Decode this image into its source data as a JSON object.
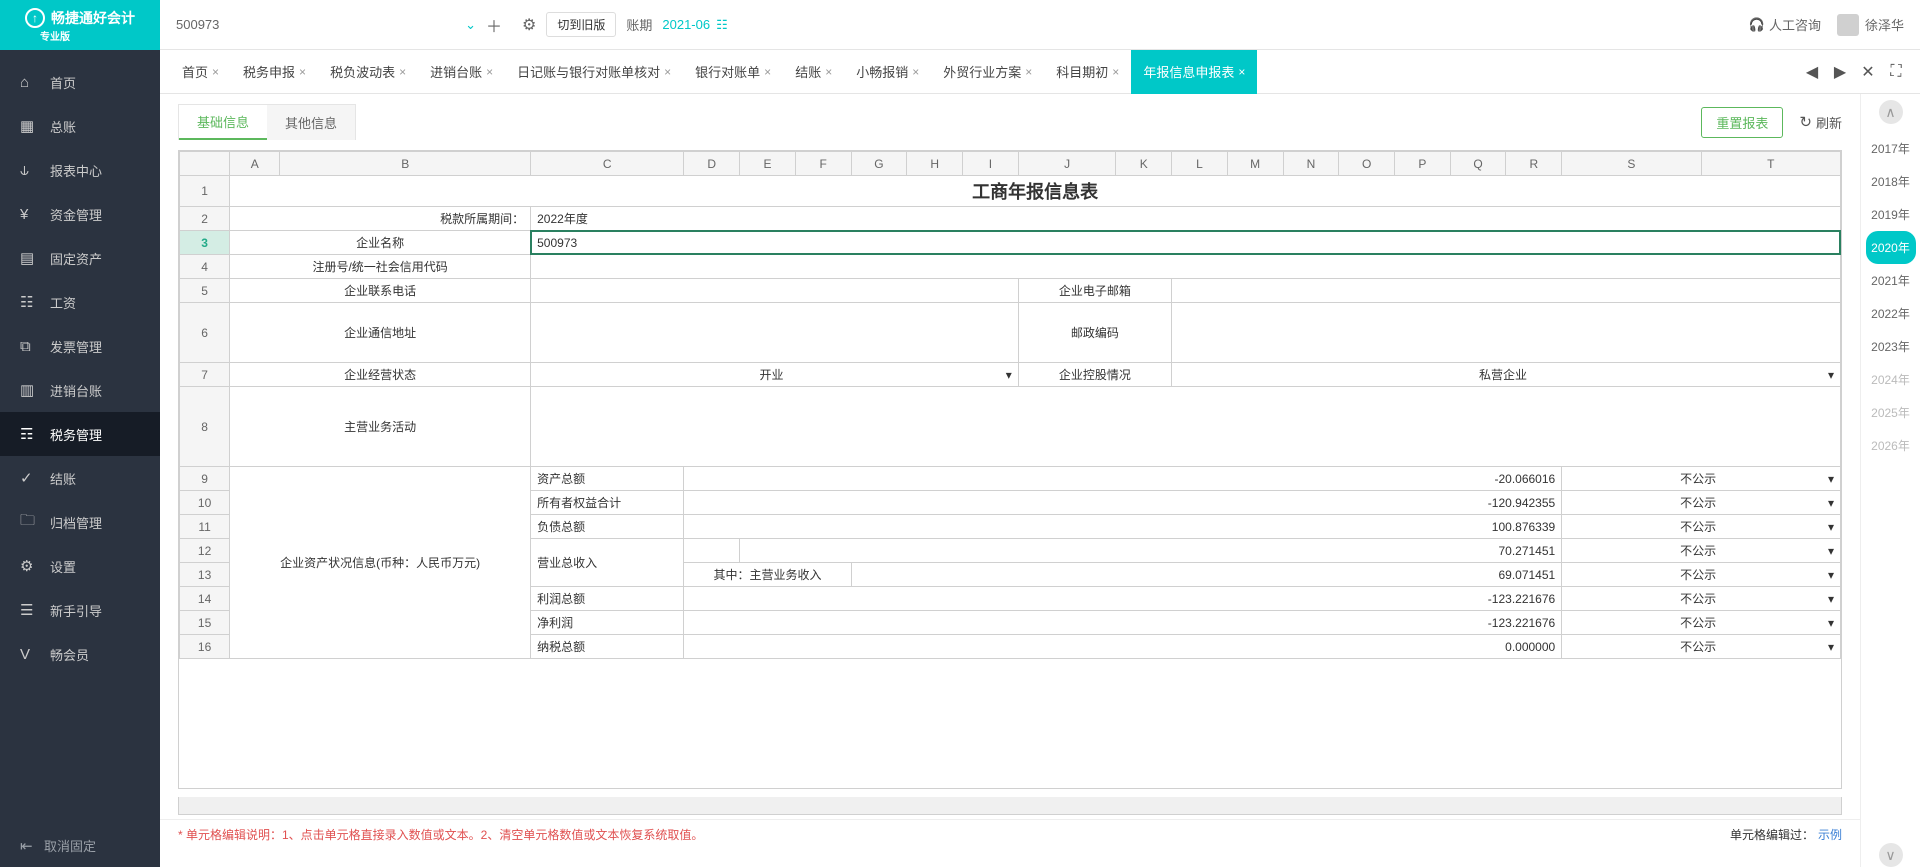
{
  "brand": {
    "name": "畅捷通好会计",
    "edition": "专业版"
  },
  "topbar": {
    "company_code": "500973",
    "switch_old_label": "切到旧版",
    "period_label": "账期",
    "period_value": "2021-06",
    "support_label": "人工咨询",
    "user_name": "徐泽华"
  },
  "nav": {
    "items": [
      {
        "icon": "⌂",
        "label": "首页",
        "name": "home"
      },
      {
        "icon": "▦",
        "label": "总账",
        "name": "general-ledger"
      },
      {
        "icon": "⫝",
        "label": "报表中心",
        "name": "report-center"
      },
      {
        "icon": "¥",
        "label": "资金管理",
        "name": "fund"
      },
      {
        "icon": "▤",
        "label": "固定资产",
        "name": "fixed-asset"
      },
      {
        "icon": "☷",
        "label": "工资",
        "name": "salary"
      },
      {
        "icon": "⧉",
        "label": "发票管理",
        "name": "invoice"
      },
      {
        "icon": "▥",
        "label": "进销台账",
        "name": "inventory"
      },
      {
        "icon": "☶",
        "label": "税务管理",
        "name": "tax"
      },
      {
        "icon": "✓",
        "label": "结账",
        "name": "closing"
      },
      {
        "icon": "🗀",
        "label": "归档管理",
        "name": "archive"
      },
      {
        "icon": "⚙",
        "label": "设置",
        "name": "settings"
      },
      {
        "icon": "☰",
        "label": "新手引导",
        "name": "guide"
      },
      {
        "icon": "V",
        "label": "畅会员",
        "name": "member"
      }
    ],
    "active_index": 8,
    "unpin_label": "取消固定"
  },
  "tabs": {
    "items": [
      {
        "label": "首页",
        "closable": true
      },
      {
        "label": "税务申报",
        "closable": true
      },
      {
        "label": "税负波动表",
        "closable": true
      },
      {
        "label": "进销台账",
        "closable": true
      },
      {
        "label": "日记账与银行对账单核对",
        "closable": true
      },
      {
        "label": "银行对账单",
        "closable": true
      },
      {
        "label": "结账",
        "closable": true
      },
      {
        "label": "小畅报销",
        "closable": true
      },
      {
        "label": "外贸行业方案",
        "closable": true
      },
      {
        "label": "科目期初",
        "closable": true
      },
      {
        "label": "年报信息申报表",
        "closable": true
      }
    ],
    "active_index": 10
  },
  "sheet": {
    "tabs": [
      "基础信息",
      "其他信息"
    ],
    "active_tab": 0,
    "reset_label": "重置报表",
    "refresh_label": "刷新",
    "columns": [
      "",
      "A",
      "B",
      "C",
      "D",
      "E",
      "F",
      "G",
      "H",
      "I",
      "J",
      "K",
      "L",
      "M",
      "N",
      "O",
      "P",
      "Q",
      "R",
      "S",
      "T"
    ],
    "title": "工商年报信息表",
    "period_label": "税款所属期间：",
    "period_value": "2022年度",
    "company_cell_value": "500973",
    "rows": {
      "r3": "企业名称",
      "r4": "注册号/统一社会信用代码",
      "r5a": "企业联系电话",
      "r5b": "企业电子邮箱",
      "r6a": "企业通信地址",
      "r6b": "邮政编码",
      "r7a": "企业经营状态",
      "r7a_val": "开业",
      "r7b": "企业控股情况",
      "r7b_val": "私营企业",
      "r8": "主营业务活动",
      "merge912": "企业资产状况信息(币种：人民币万元)",
      "r9a": "资产总额",
      "r9v": "-20.066016",
      "r10a": "所有者权益合计",
      "r10v": "-120.942355",
      "r11a": "负债总额",
      "r11v": "100.876339",
      "r12a": "营业总收入",
      "r12v": "70.271451",
      "r13a": "其中：主营业务收入",
      "r13v": "69.071451",
      "r14a": "利润总额",
      "r14v": "-123.221676",
      "r15a": "净利润",
      "r15v": "-123.221676",
      "r16a": "纳税总额",
      "r16v": "0.000000",
      "nodisplay": "不公示"
    },
    "footnote": "* 单元格编辑说明：1、点击单元格直接录入数值或文本。2、清空单元格数值或文本恢复系统取值。",
    "footnote_right_label": "单元格编辑过：",
    "footnote_example": "示例"
  },
  "year_rail": {
    "years": [
      "2017年",
      "2018年",
      "2019年",
      "2020年",
      "2021年",
      "2022年",
      "2023年",
      "2024年",
      "2025年",
      "2026年"
    ],
    "active_index": 3,
    "dim_from_index": 7
  }
}
